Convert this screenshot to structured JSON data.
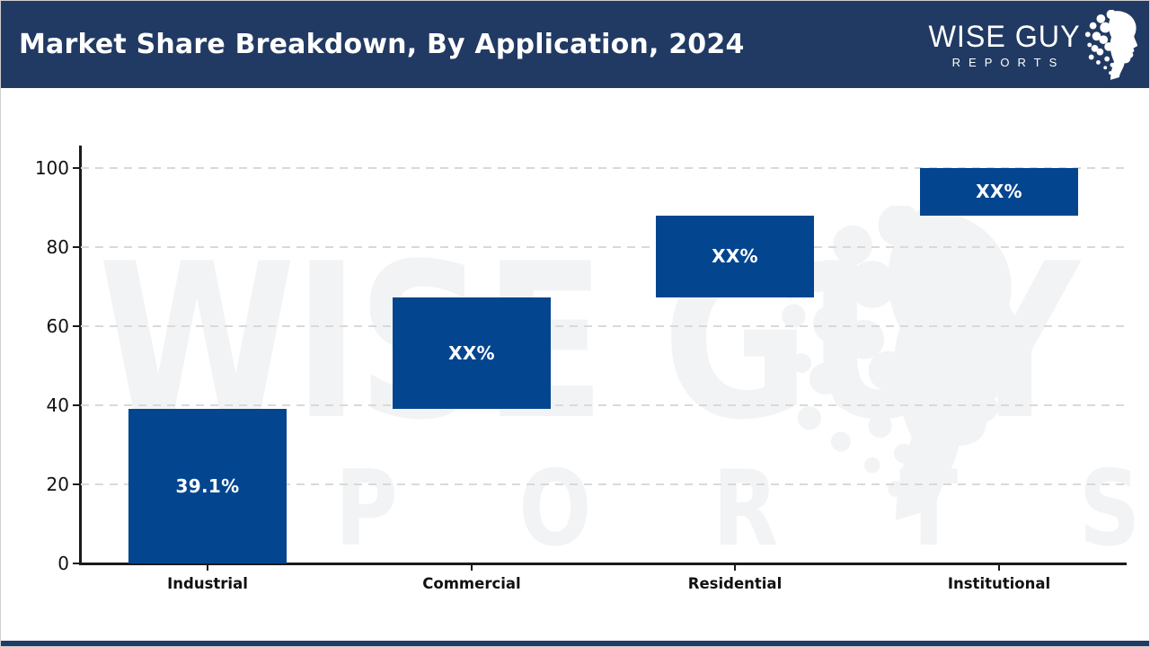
{
  "header": {
    "title": "Market Share Breakdown, By Application, 2024",
    "logo_line1": "WISE GUY",
    "logo_line2": "REPORTS"
  },
  "watermark": {
    "line1": "WISE GUY",
    "line2": "P O R T S"
  },
  "chart_data": {
    "type": "bar",
    "subtype": "waterfall",
    "title": "Market Share Breakdown, By Application, 2024",
    "categories": [
      "Industrial",
      "Commercial",
      "Residential",
      "Institutional"
    ],
    "segments": [
      {
        "category": "Industrial",
        "start": 0,
        "end": 39.1,
        "label": "39.1%"
      },
      {
        "category": "Commercial",
        "start": 39.1,
        "end": 67.2,
        "label": "XX%"
      },
      {
        "category": "Residential",
        "start": 67.2,
        "end": 87.9,
        "label": "XX%"
      },
      {
        "category": "Institutional",
        "start": 87.9,
        "end": 100,
        "label": "XX%"
      }
    ],
    "xlabel": "",
    "ylabel": "",
    "ylim": [
      0,
      100
    ],
    "yticks": [
      0,
      20,
      40,
      60,
      80,
      100
    ],
    "grid": "horizontal-dashed",
    "legend": "none",
    "bar_color": "#04458f",
    "bar_label_color": "#ffffff"
  },
  "colors": {
    "header_bg": "#213a63",
    "footer_bg": "#213a63",
    "bar": "#04458f",
    "gridline": "#d9d9d9",
    "axis": "#1a1a1a",
    "watermark": "#f2f3f4",
    "title_text": "#ffffff"
  }
}
